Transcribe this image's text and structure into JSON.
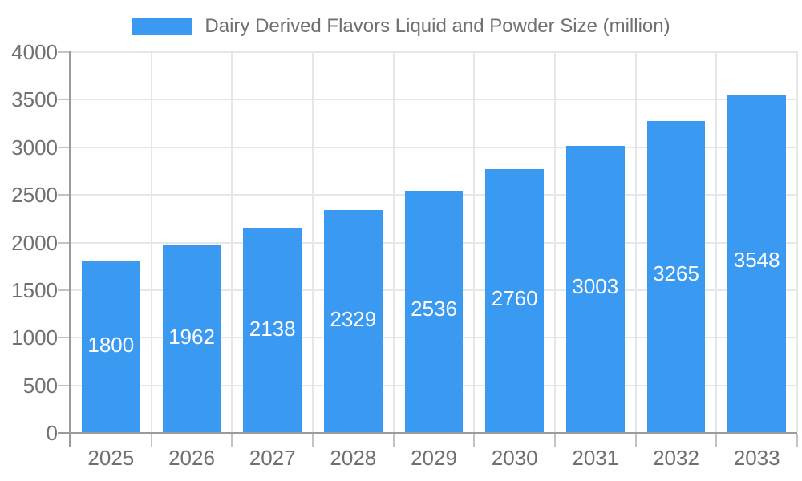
{
  "legend": {
    "items": [
      {
        "label": "Dairy Derived Flavors Liquid and Powder Size (million)",
        "color": "#3a99f0"
      }
    ],
    "position": "top-center"
  },
  "chart_data": {
    "type": "bar",
    "title": "Dairy Derived Flavors Liquid and Powder Size (million)",
    "categories": [
      "2025",
      "2026",
      "2027",
      "2028",
      "2029",
      "2030",
      "2031",
      "2032",
      "2033"
    ],
    "series": [
      {
        "name": "Dairy Derived Flavors Liquid and Powder Size (million)",
        "values": [
          1800,
          1962,
          2138,
          2329,
          2536,
          2760,
          3003,
          3265,
          3548
        ],
        "color": "#3a99f0"
      }
    ],
    "value_labels": {
      "visible": true,
      "position": "inside-center",
      "color": "#ffffff"
    },
    "xlabel": "",
    "ylabel": "",
    "ylim": [
      0,
      4000
    ],
    "ytick_step": 500,
    "yticks": [
      0,
      500,
      1000,
      1500,
      2000,
      2500,
      3000,
      3500,
      4000
    ],
    "ytick_labels": [
      "0",
      "500",
      "1000",
      "1500",
      "2000",
      "2500",
      "3000",
      "3500",
      "4000"
    ],
    "grid": true,
    "legend_position": "top",
    "colors": {
      "bar": "#3a99f0",
      "axis_line": "#9b9b9b",
      "grid_line": "#e7e7e7",
      "tick": "#c3c3c3",
      "axis_label": "#707070",
      "title": "#707070",
      "value_label": "#ffffff",
      "background": "#ffffff"
    }
  }
}
